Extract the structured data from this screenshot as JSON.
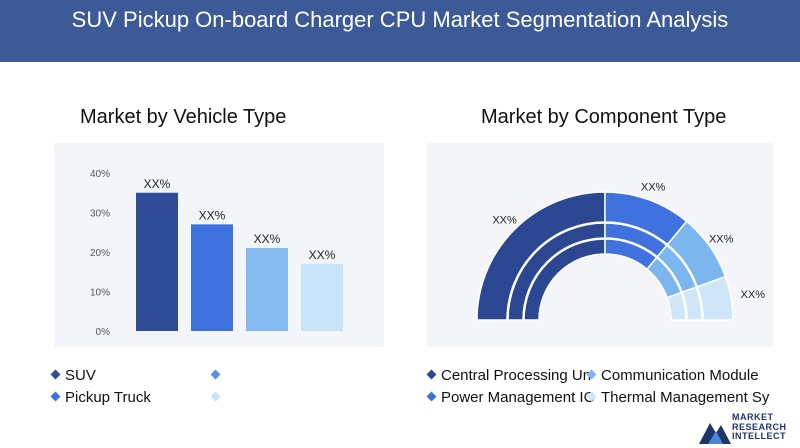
{
  "header": {
    "title": "SUV Pickup On-board Charger CPU Market Segmentation Analysis"
  },
  "left_panel": {
    "title": "Market by Vehicle Type",
    "legend": [
      {
        "label": "SUV",
        "color": "#2f4d96"
      },
      {
        "label": "",
        "color": "#5b8ee8"
      },
      {
        "label": "Pickup Truck",
        "color": "#3f72de"
      },
      {
        "label": "",
        "color": "#c6e3f7"
      }
    ]
  },
  "right_panel": {
    "title": "Market by Component Type",
    "legend": [
      {
        "label": "Central Processing Un",
        "color": "#2b4791"
      },
      {
        "label": "Communication Module",
        "color": "#7cb6ee"
      },
      {
        "label": "Power Management IC",
        "color": "#3f72de"
      },
      {
        "label": "Thermal Management Sy",
        "color": "#cfe6f8"
      }
    ]
  },
  "logo": {
    "line1": "MARKET",
    "line2": "RESEARCH",
    "line3": "INTELLECT"
  },
  "chart_data": [
    {
      "type": "bar",
      "categories": [
        "",
        "",
        "",
        ""
      ],
      "values": [
        35,
        27,
        21,
        17
      ],
      "data_labels": [
        "XX%",
        "XX%",
        "XX%",
        "XX%"
      ],
      "yticks": [
        "0%",
        "10%",
        "20%",
        "30%",
        "40%"
      ],
      "ylim": [
        0,
        40
      ],
      "colors": [
        "#2f4d96",
        "#3f72de",
        "#83baf0",
        "#c6e3f7"
      ],
      "grid": false
    },
    {
      "type": "pie",
      "style": "half-donut, multi-ring",
      "values": [
        50,
        22,
        17,
        11
      ],
      "data_labels": [
        "XX%",
        "XX%",
        "XX%",
        "XX%"
      ],
      "colors": [
        "#2b4791",
        "#3f72de",
        "#7cb6ee",
        "#cfe6f8"
      ]
    }
  ]
}
